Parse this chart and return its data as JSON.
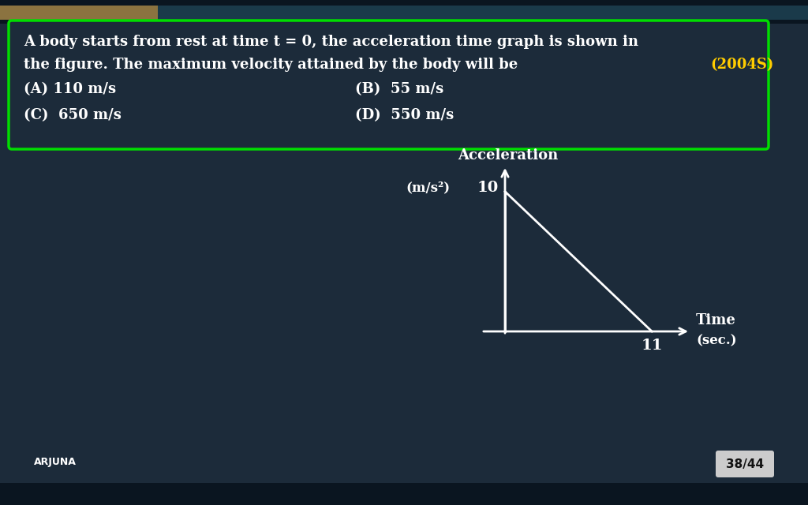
{
  "bg_color": "#1c2b3a",
  "bg_color_dark": "#0d1520",
  "question_text_line1": "A body starts from rest at time t = 0, the acceleration time graph is shown in",
  "question_text_line2": "the figure. The maximum velocity attained by the body will be",
  "year_label": "(2004S)",
  "options": [
    "(A) 110 m/s",
    "(B)  55 m/s",
    "(C)  650 m/s",
    "(D)  550 m/s"
  ],
  "box_edge_color": "#00dd00",
  "text_color": "#ffffff",
  "year_color": "#ffcc00",
  "graph_line_color": "#ffffff",
  "accel_label": "Acceleration",
  "accel_unit": "(m/s²)",
  "accel_value": "10",
  "time_label": "Time",
  "time_unit": "(sec.)",
  "time_value": "11",
  "footer_text": "ARJUNA",
  "page_label": "38/44",
  "top_bar_color": "#0a1520",
  "bottom_bar_color": "#0a1520"
}
